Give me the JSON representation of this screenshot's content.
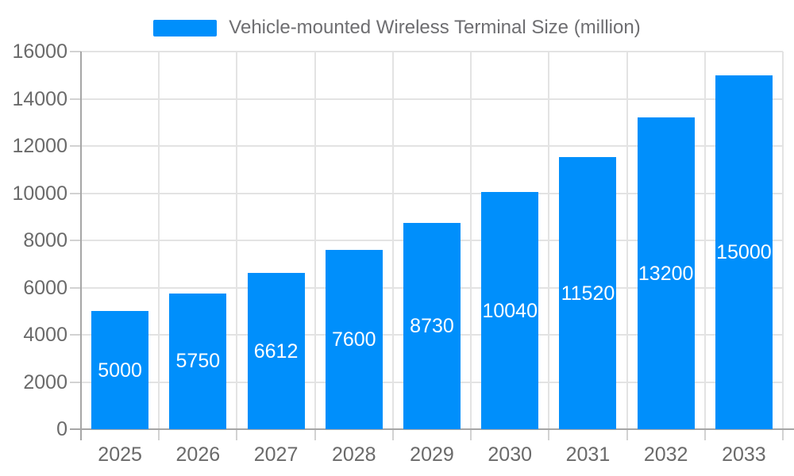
{
  "chart_data": {
    "type": "bar",
    "title": "Vehicle-mounted Wireless Terminal Size (million)",
    "categories": [
      "2025",
      "2026",
      "2027",
      "2028",
      "2029",
      "2030",
      "2031",
      "2032",
      "2033"
    ],
    "series": [
      {
        "name": "Vehicle-mounted Wireless Terminal Size (million)",
        "values": [
          5000,
          5750,
          6612,
          7600,
          8730,
          10040,
          11520,
          13200,
          15000
        ]
      }
    ],
    "data_labels": [
      "5000",
      "5750",
      "6612",
      "7600",
      "8730",
      "10040",
      "11520",
      "13200",
      "15000"
    ],
    "xlabel": "",
    "ylabel": "",
    "ylim": [
      0,
      16000
    ],
    "yticks": [
      0,
      2000,
      4000,
      6000,
      8000,
      10000,
      12000,
      14000,
      16000
    ],
    "ytick_labels": [
      "0",
      "2000",
      "4000",
      "6000",
      "8000",
      "10000",
      "12000",
      "14000",
      "16000"
    ],
    "grid": "both",
    "legend_position": "top"
  },
  "colors": {
    "bar": "#008FFB",
    "gridline": "#e3e3e3",
    "axis_line": "#a6a6a6",
    "tick": "#d2d2d2",
    "axis_label_text": "#6a6a6a",
    "legend_text": "#6e6e71",
    "data_label_text": "#ffffff",
    "background": "#ffffff"
  }
}
